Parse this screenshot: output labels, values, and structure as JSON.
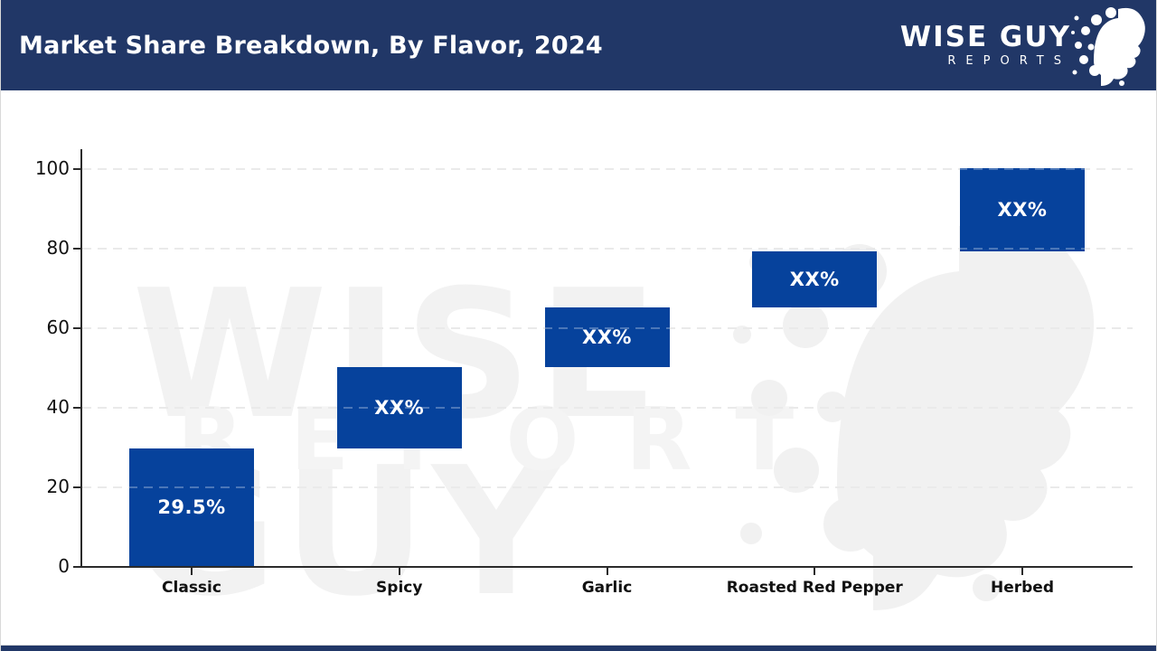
{
  "header": {
    "title": "Market Share Breakdown, By Flavor, 2024",
    "bg_color": "#213767",
    "logo": {
      "line1": "WISE GUY",
      "line2": "REPORTS"
    }
  },
  "watermark": {
    "line1": "WISE GUY",
    "line2": "REPORTS"
  },
  "chart_data": {
    "type": "bar",
    "subtype": "waterfall",
    "title": "Market Share Breakdown, By Flavor, 2024",
    "categories": [
      "Classic",
      "Spicy",
      "Garlic",
      "Roasted Red Pepper",
      "Herbed"
    ],
    "series": [
      {
        "name": "Market Share (%)",
        "segments": [
          {
            "category": "Classic",
            "start": 0,
            "end": 29.5,
            "value": 29.5,
            "label": "29.5%"
          },
          {
            "category": "Spicy",
            "start": 29.5,
            "end": 50,
            "value": 20.5,
            "label": "XX%"
          },
          {
            "category": "Garlic",
            "start": 50,
            "end": 65,
            "value": 15,
            "label": "XX%"
          },
          {
            "category": "Roasted Red Pepper",
            "start": 65,
            "end": 79,
            "value": 14,
            "label": "XX%"
          },
          {
            "category": "Herbed",
            "start": 79,
            "end": 100,
            "value": 21,
            "label": "XX%"
          }
        ]
      }
    ],
    "xlabel": "",
    "ylabel": "",
    "ylim": [
      0,
      105
    ],
    "yticks": [
      0,
      20,
      40,
      60,
      80,
      100
    ],
    "grid": "horizontal dashed",
    "legend": "none",
    "bar_color": "#06429c",
    "bar_label_color": "#ffffff",
    "axis_color": "#2b2b2b",
    "grid_color": "#e2e2e2"
  },
  "footer": {
    "bar_color": "#213767"
  }
}
